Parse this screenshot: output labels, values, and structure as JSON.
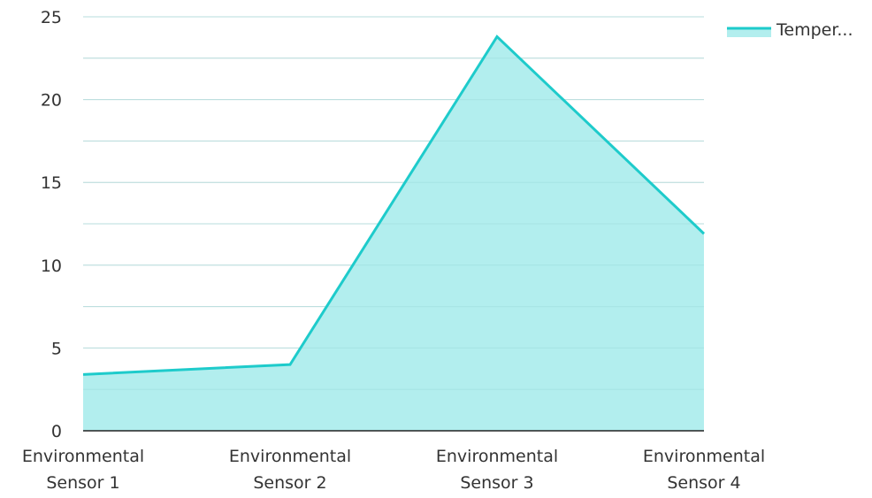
{
  "chart_data": {
    "type": "area",
    "categories": [
      [
        "Environmental",
        "Sensor 1"
      ],
      [
        "Environmental",
        "Sensor 2"
      ],
      [
        "Environmental",
        "Sensor 3"
      ],
      [
        "Environmental",
        "Sensor 4"
      ]
    ],
    "series": [
      {
        "name": "Temper...",
        "values": [
          3.4,
          4.0,
          23.8,
          11.9
        ]
      }
    ],
    "yticks": [
      "0",
      "5",
      "10",
      "15",
      "20",
      "25"
    ],
    "ylim": [
      0,
      25
    ],
    "minor_step": 2.5,
    "grid": true,
    "legend": "top-right",
    "colors": {
      "line": "#1ecbcb",
      "fill": "#b2eeee",
      "grid": "#dddddd",
      "axis": "#222222"
    }
  }
}
